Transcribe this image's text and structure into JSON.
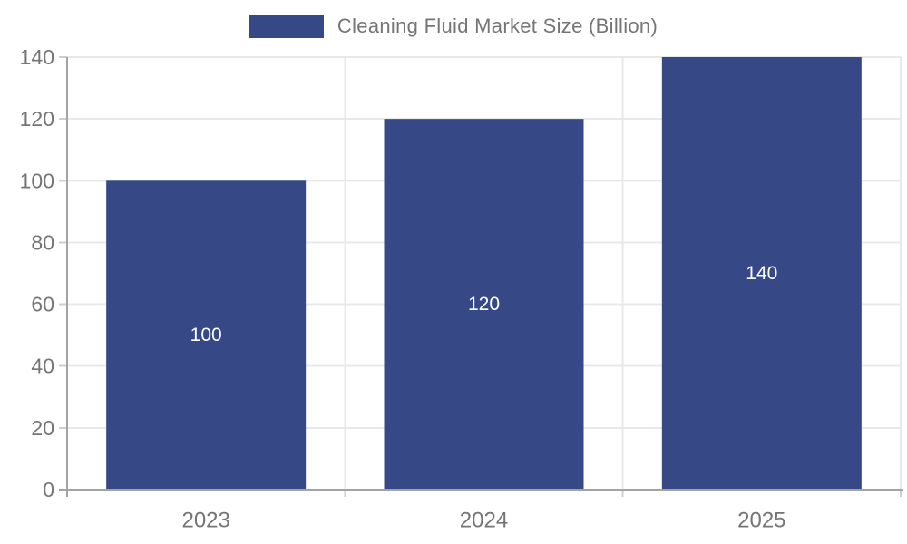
{
  "chart_data": {
    "type": "bar",
    "title": "",
    "legend": {
      "label": "Cleaning Fluid Market Size (Billion)",
      "position": "top-center"
    },
    "categories": [
      "2023",
      "2024",
      "2025"
    ],
    "series": [
      {
        "name": "Cleaning Fluid Market Size (Billion)",
        "values": [
          100,
          120,
          140
        ],
        "bar_labels": [
          "100",
          "120",
          "140"
        ]
      }
    ],
    "xlabel": "",
    "ylabel": "",
    "ylim": [
      0,
      140
    ],
    "yticks": [
      0,
      20,
      40,
      60,
      80,
      100,
      120,
      140
    ],
    "grid": true,
    "colors": {
      "bar": "#364986",
      "axis_text": "#757575",
      "bar_label_text": "#ffffff",
      "gridline": "#e8e8e8",
      "axis_line": "#a3a3a3",
      "tick_mark": "#cfcfcf",
      "background": "#ffffff"
    }
  }
}
